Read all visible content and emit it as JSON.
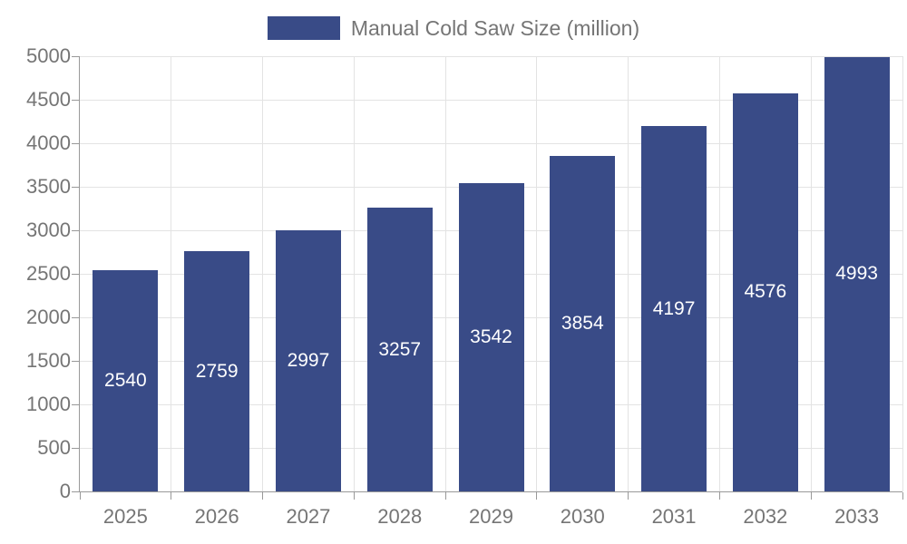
{
  "legend": {
    "label": "Manual Cold Saw Size (million)"
  },
  "colors": {
    "bar": "#394b87",
    "axis_label_text": "#757575",
    "legend_text": "#757575",
    "grid_line": "#e3e3e3",
    "axis_line": "#999999",
    "value_label_text": "#ffffff",
    "background": "#ffffff"
  },
  "chart_data": {
    "type": "bar",
    "title": "Manual Cold Saw Size (million)",
    "series_name": "Manual Cold Saw Size (million)",
    "categories": [
      "2025",
      "2026",
      "2027",
      "2028",
      "2029",
      "2030",
      "2031",
      "2032",
      "2033"
    ],
    "values": [
      2540,
      2759,
      2997,
      3257,
      3542,
      3854,
      4197,
      4576,
      4993
    ],
    "xlabel": "",
    "ylabel": "",
    "ylim": [
      0,
      5000
    ],
    "ytick_step": 500,
    "ytick_labels": [
      "0",
      "500",
      "1000",
      "1500",
      "2000",
      "2500",
      "3000",
      "3500",
      "4000",
      "4500",
      "5000"
    ],
    "grid": true,
    "grid_vertical": true,
    "legend_position": "top",
    "value_labels_inside": true
  }
}
